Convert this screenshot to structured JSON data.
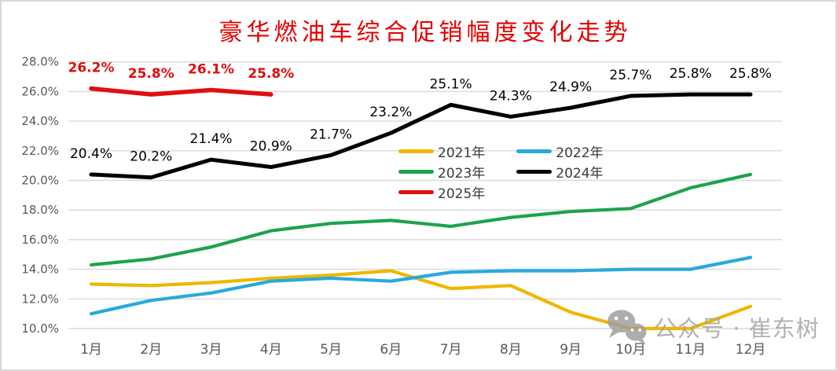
{
  "chart_data": {
    "type": "line",
    "title": "豪华燃油车综合促销幅度变化走势",
    "title_color": "#E30000",
    "categories": [
      "1月",
      "2月",
      "3月",
      "4月",
      "5月",
      "6月",
      "7月",
      "8月",
      "9月",
      "10月",
      "11月",
      "12月"
    ],
    "y_ticks": [
      "10.0%",
      "12.0%",
      "14.0%",
      "16.0%",
      "18.0%",
      "20.0%",
      "22.0%",
      "24.0%",
      "26.0%",
      "28.0%"
    ],
    "ylim": [
      10,
      28
    ],
    "y_tick_step": 2,
    "grid": "horizontal",
    "legend_position": "inside-plot-center-right",
    "series": [
      {
        "name": "2021年",
        "color": "#EFB700",
        "width": 4.2,
        "data_labels": false,
        "values": [
          13.0,
          12.9,
          13.1,
          13.4,
          13.6,
          13.9,
          12.7,
          12.9,
          11.1,
          10.0,
          10.0,
          11.5
        ]
      },
      {
        "name": "2022年",
        "color": "#29A9DC",
        "width": 4.2,
        "data_labels": false,
        "values": [
          11.0,
          11.9,
          12.4,
          13.2,
          13.4,
          13.2,
          13.8,
          13.9,
          13.9,
          14.0,
          14.0,
          14.8
        ]
      },
      {
        "name": "2023年",
        "color": "#1EA24E",
        "width": 4.2,
        "data_labels": false,
        "values": [
          14.3,
          14.7,
          15.5,
          16.6,
          17.1,
          17.3,
          16.9,
          17.5,
          17.9,
          18.1,
          19.5,
          20.4
        ]
      },
      {
        "name": "2024年",
        "color": "#000000",
        "width": 5,
        "data_labels": true,
        "label_bold": false,
        "values": [
          20.4,
          20.2,
          21.4,
          20.9,
          21.7,
          23.2,
          25.1,
          24.3,
          24.9,
          25.7,
          25.8,
          25.8
        ]
      },
      {
        "name": "2025年",
        "color": "#DE0F0F",
        "width": 5.5,
        "data_labels": true,
        "label_bold": true,
        "values": [
          26.2,
          25.8,
          26.1,
          25.8
        ]
      }
    ]
  },
  "watermark": {
    "icon": "wechat-icon",
    "text": "公众号 · 崔东树"
  },
  "colors": {
    "gridline": "#D9D9D9",
    "axis_text": "#595959",
    "legend_text": "#3A3A3A",
    "border": "#D8D8D8",
    "watermark_text": "#A0A0A0"
  }
}
